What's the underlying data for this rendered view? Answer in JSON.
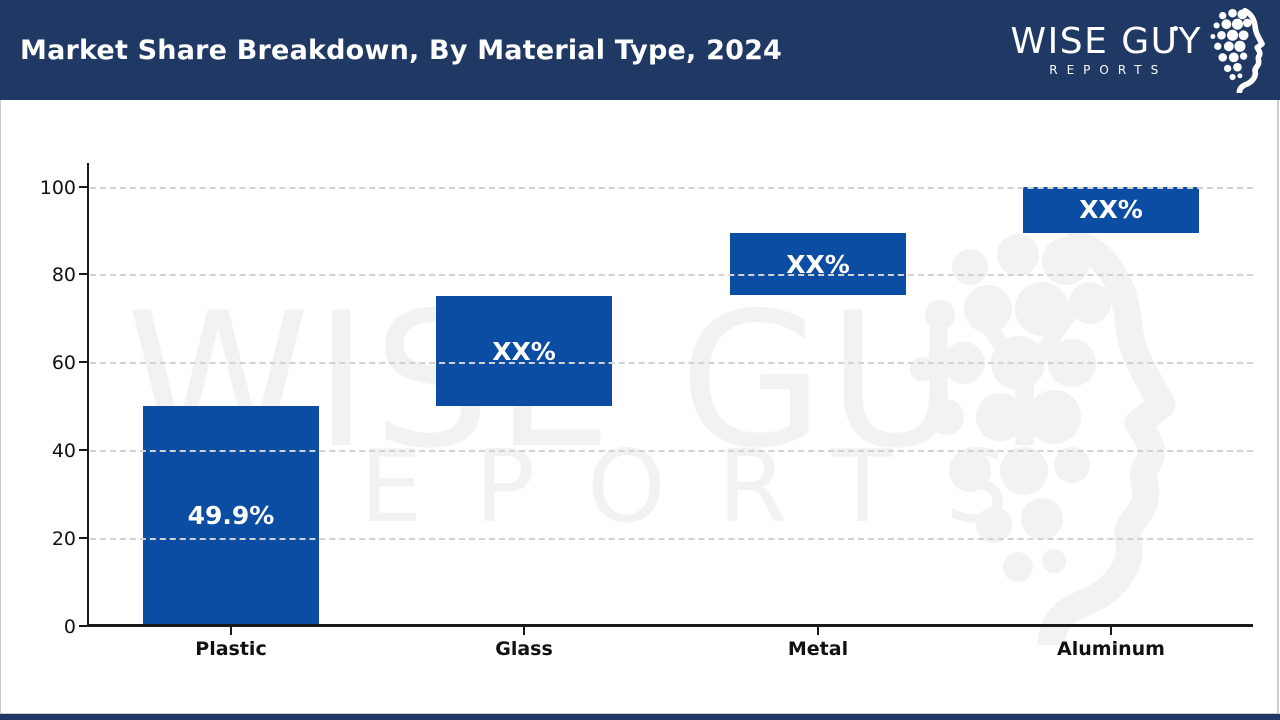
{
  "header": {
    "title": "Market Share Breakdown, By Material Type, 2024",
    "bg_color": "#1F3864",
    "logo": {
      "line1": "WISE GUY",
      "line2": "REPORTS",
      "head_icon": "dotted-head-profile"
    }
  },
  "watermark": {
    "line1": "WISE GUY",
    "line2": "REPORTS",
    "color": "#F2F2F2"
  },
  "footer": {
    "bg_color": "#1F3864"
  },
  "chart_data": {
    "type": "bar",
    "variant": "waterfall",
    "title": "Market Share Breakdown, By Material Type, 2024",
    "categories": [
      "Plastic",
      "Glass",
      "Metal",
      "Aluminum"
    ],
    "segments": [
      {
        "category": "Plastic",
        "start": 0,
        "end": 49.9,
        "label": "49.9%"
      },
      {
        "category": "Glass",
        "start": 49.9,
        "end": 75.1,
        "label": "XX%"
      },
      {
        "category": "Metal",
        "start": 75.2,
        "end": 89.3,
        "label": "XX%"
      },
      {
        "category": "Aluminum",
        "start": 89.3,
        "end": 100,
        "label": "XX%"
      }
    ],
    "xlabel": "",
    "ylabel": "",
    "ylim": [
      0,
      105
    ],
    "yticks": [
      0,
      20,
      40,
      60,
      80,
      100
    ],
    "grid": "horizontal-dashed",
    "legend": "none",
    "bar_color": "#0B4DA2",
    "bar_label_color": "#FFFFFF",
    "axis_color": "#1A1A1A"
  }
}
